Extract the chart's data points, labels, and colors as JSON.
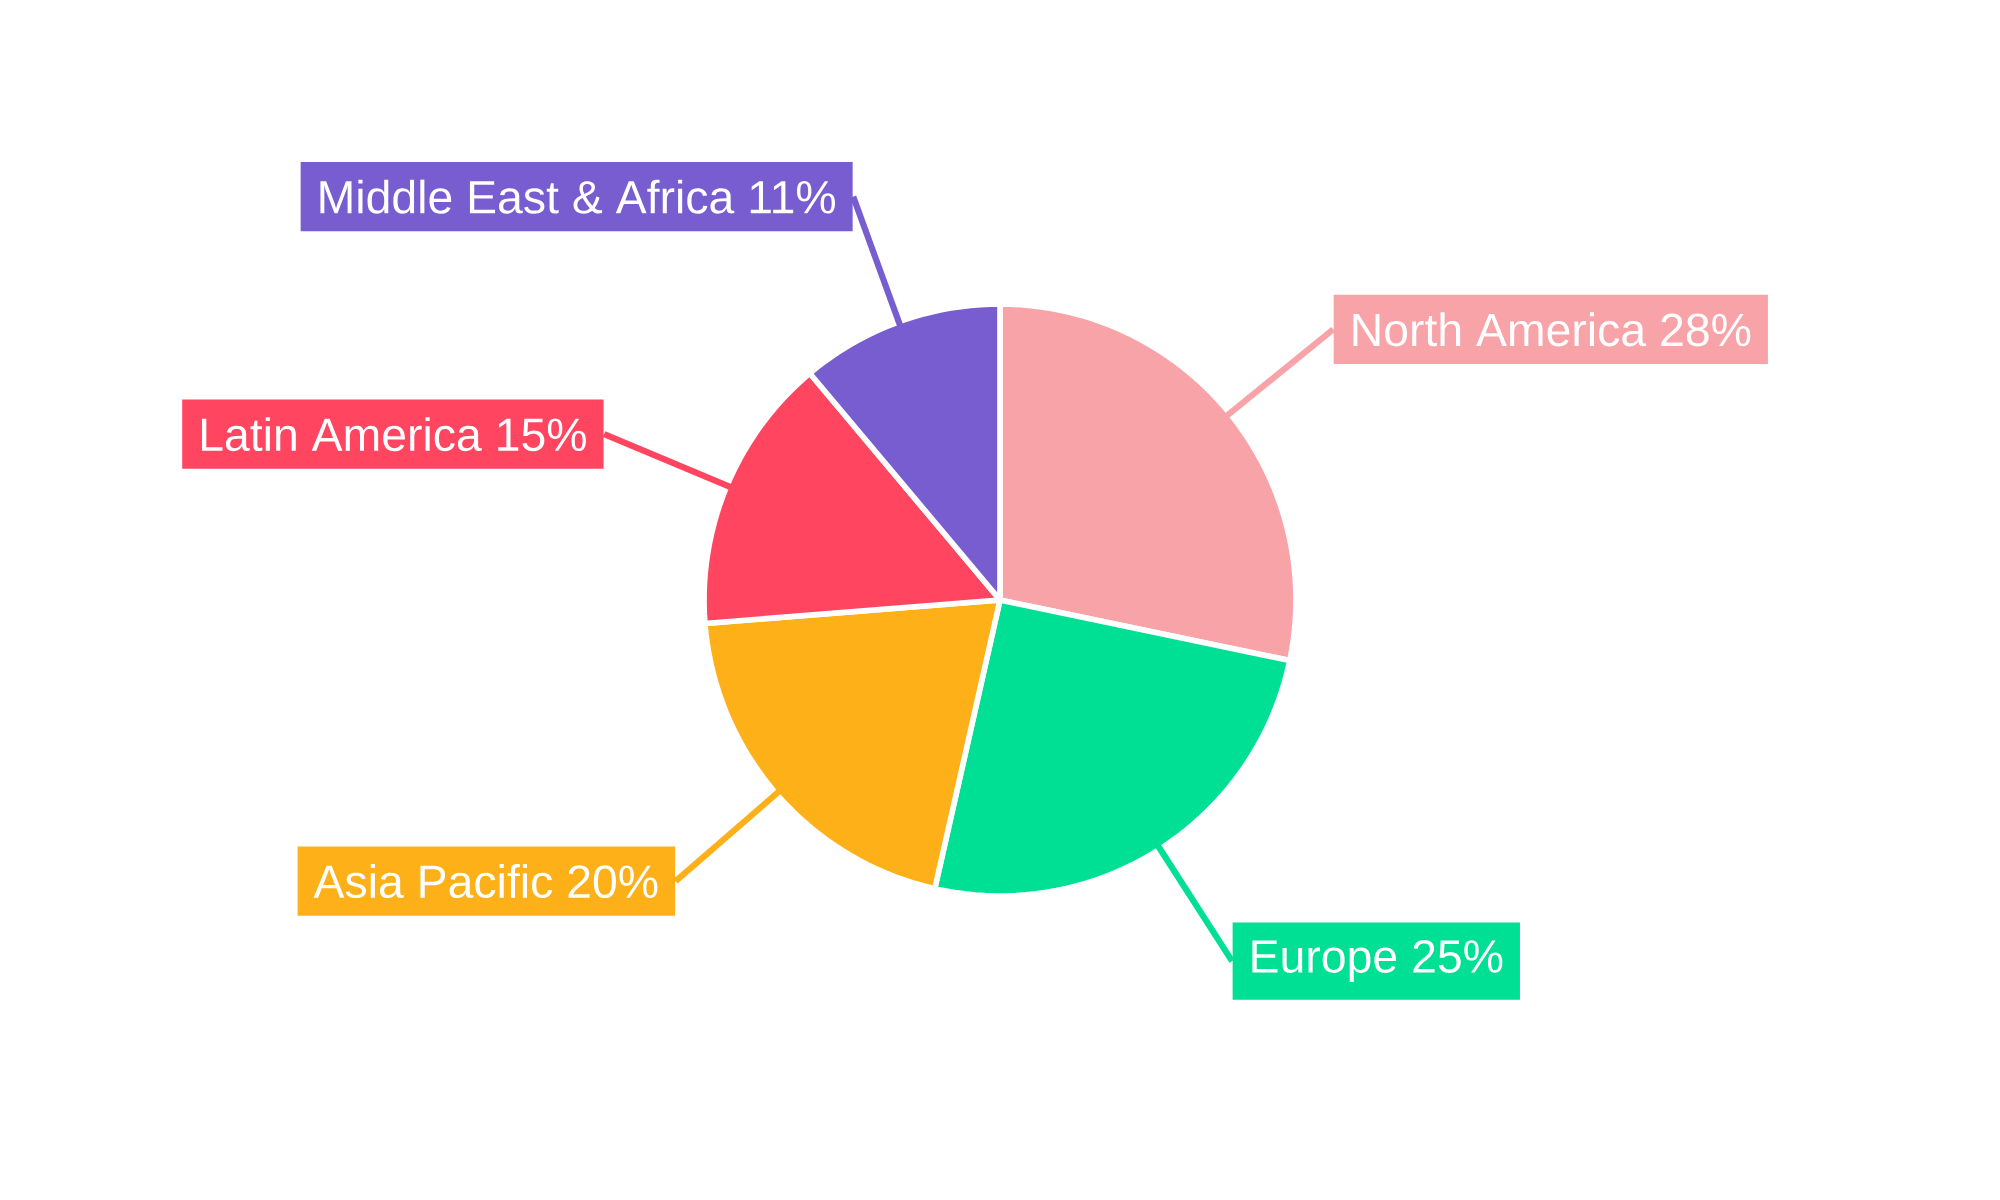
{
  "chart_data": {
    "type": "pie",
    "categories": [
      "North America",
      "Europe",
      "Asia Pacific",
      "Latin America",
      "Middle East & Africa"
    ],
    "values": [
      28,
      25,
      20,
      15,
      11
    ],
    "value_labels": [
      "28%",
      "25%",
      "20%",
      "15%",
      "11%"
    ],
    "colors": [
      "#f8a3a8",
      "#00e094",
      "#feb019",
      "#ff4560",
      "#775dd0"
    ]
  }
}
